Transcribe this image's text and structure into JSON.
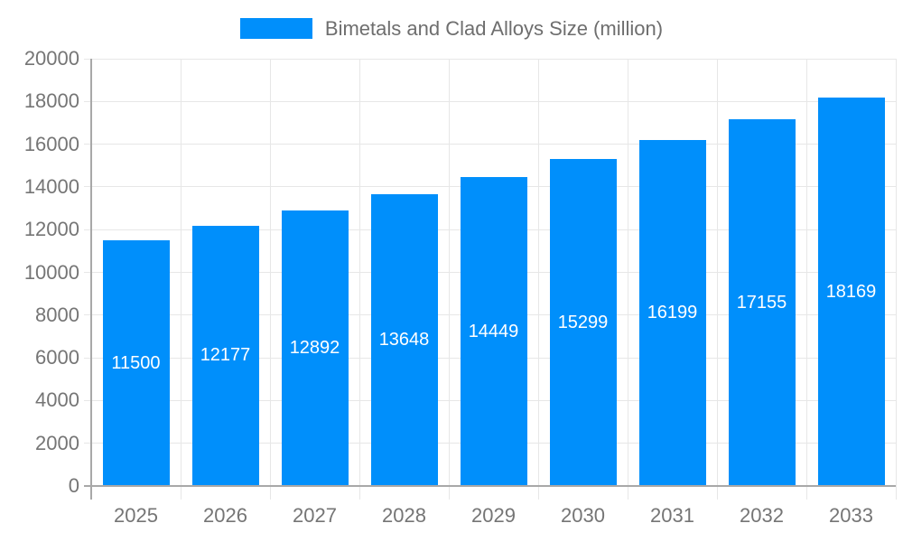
{
  "chart_data": {
    "type": "bar",
    "title": "Bimetals and Clad Alloys Size (million)",
    "legend": {
      "position": "top",
      "entries": [
        "Bimetals and Clad Alloys Size (million)"
      ]
    },
    "categories": [
      "2025",
      "2026",
      "2027",
      "2028",
      "2029",
      "2030",
      "2031",
      "2032",
      "2033"
    ],
    "values": [
      11500,
      12177,
      12892,
      13648,
      14449,
      15299,
      16199,
      17155,
      18169
    ],
    "data_labels": [
      "11500",
      "12177",
      "12892",
      "13648",
      "14449",
      "15299",
      "16199",
      "17155",
      "18169"
    ],
    "xlabel": "",
    "ylabel": "",
    "ylim": [
      0,
      20000
    ],
    "ytick_step": 2000,
    "ytick_labels": [
      "0",
      "2000",
      "4000",
      "6000",
      "8000",
      "10000",
      "12000",
      "14000",
      "16000",
      "18000",
      "20000"
    ],
    "grid": true,
    "colors": {
      "bar": "#008FFB",
      "bar_label_text": "#FFFFFF",
      "axis_label_text": "#757575",
      "legend_text": "#6E6E6E",
      "gridline": "#E7E7E7",
      "axis_line": "#A8A8A8",
      "background": "#FFFFFF"
    }
  }
}
